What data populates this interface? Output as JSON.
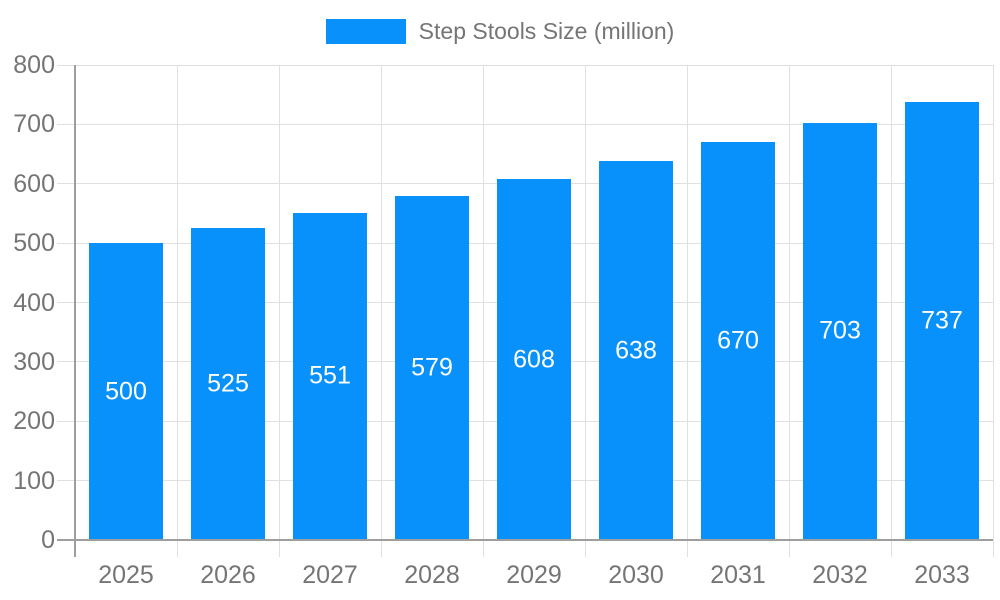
{
  "legend": {
    "label": "Step Stools Size (million)",
    "swatch_color": "#0991FB"
  },
  "chart_data": {
    "type": "bar",
    "title": "Step Stools Size (million)",
    "categories": [
      "2025",
      "2026",
      "2027",
      "2028",
      "2029",
      "2030",
      "2031",
      "2032",
      "2033"
    ],
    "series": [
      {
        "name": "Step Stools Size (million)",
        "values": [
          500,
          525,
          551,
          579,
          608,
          638,
          670,
          703,
          737
        ]
      }
    ],
    "xlabel": "",
    "ylabel": "",
    "ylim": [
      0,
      800
    ],
    "yticks": [
      0,
      100,
      200,
      300,
      400,
      500,
      600,
      700,
      800
    ],
    "grid": true,
    "legend_position": "top",
    "colors": {
      "bar": "#0991FB",
      "value_label": "#FFFFFF",
      "axis_text": "#757575",
      "gridline": "#E0E0E0",
      "axis_line": "#9E9E9E",
      "background": "#FFFFFF"
    }
  }
}
